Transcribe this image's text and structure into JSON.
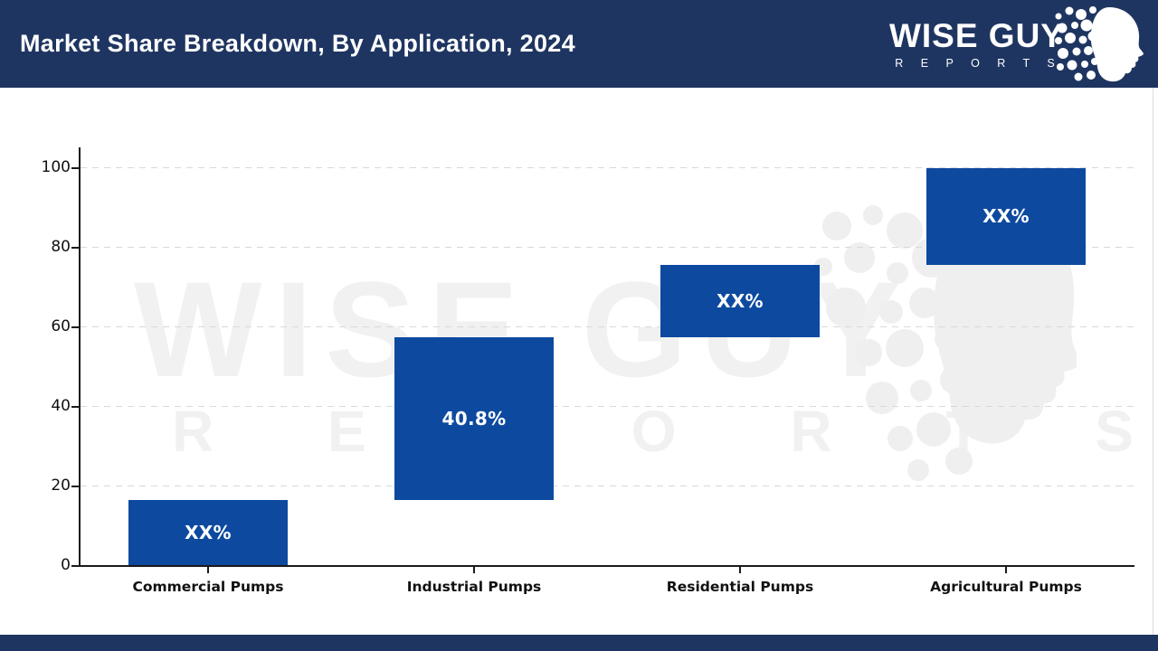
{
  "header": {
    "title": "Market Share Breakdown, By Application, 2024",
    "logo_line1": "WISE GUY",
    "logo_line2": "R E P O R T S",
    "bg_color": "#1f3561",
    "text_color": "#ffffff"
  },
  "watermark": {
    "line1": "WISE GUY",
    "line2": "R E P O R T S"
  },
  "chart_data": {
    "type": "bar",
    "subtype": "waterfall-range-breakdown",
    "title": "Market Share Breakdown, By Application, 2024",
    "categories": [
      "Commercial Pumps",
      "Industrial Pumps",
      "Residential Pumps",
      "Agricultural Pumps"
    ],
    "segments": [
      {
        "category": "Commercial Pumps",
        "start": 0,
        "end": 16.6,
        "label": "XX%"
      },
      {
        "category": "Industrial Pumps",
        "start": 16.6,
        "end": 57.4,
        "label": "40.8%"
      },
      {
        "category": "Residential Pumps",
        "start": 57.4,
        "end": 75.7,
        "label": "XX%"
      },
      {
        "category": "Agricultural Pumps",
        "start": 75.7,
        "end": 100,
        "label": "XX%"
      }
    ],
    "ylim": [
      0,
      100
    ],
    "yticks": [
      0,
      20,
      40,
      60,
      80,
      100
    ],
    "xlabel": "",
    "ylabel": "",
    "grid": "horizontal-dashed",
    "legend": "none",
    "bar_color": "#0d4a9f",
    "bar_label_color": "#ffffff",
    "axis_color": "#1a1a1a",
    "grid_color": "#d9d9d9"
  }
}
